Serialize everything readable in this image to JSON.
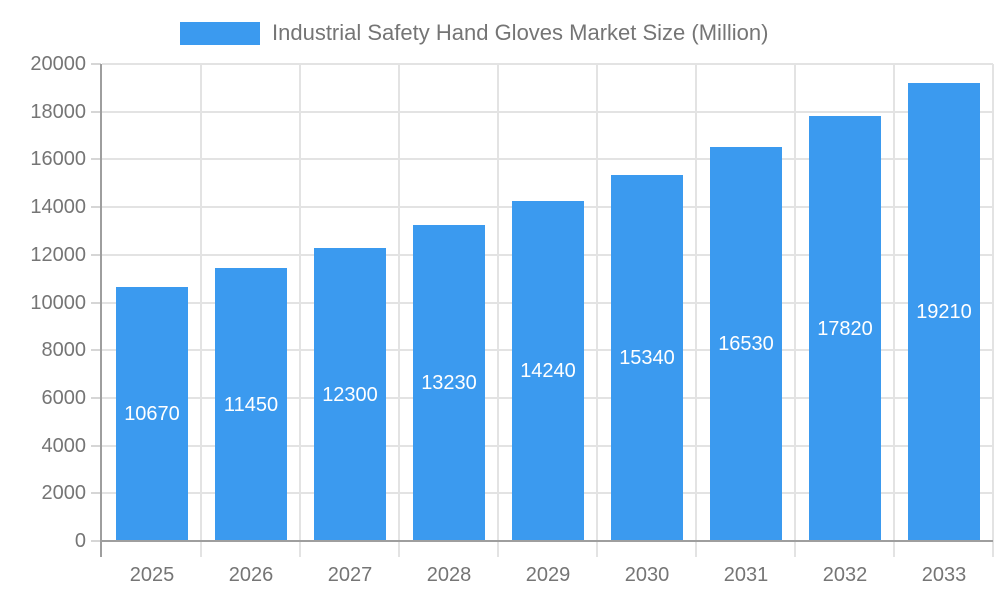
{
  "chart_data": {
    "type": "bar",
    "title": "Industrial Safety Hand Gloves Market Size (Million)",
    "series_name": "Industrial Safety Hand Gloves Market Size (Million)",
    "categories": [
      "2025",
      "2026",
      "2027",
      "2028",
      "2029",
      "2030",
      "2031",
      "2032",
      "2033"
    ],
    "values": [
      10670,
      11450,
      12300,
      13230,
      14240,
      15340,
      16530,
      17820,
      19210
    ],
    "xlabel": "",
    "ylabel": "",
    "ylim": [
      0,
      20000
    ],
    "ytick_step": 2000,
    "ytick_labels": [
      "0",
      "2000",
      "4000",
      "6000",
      "8000",
      "10000",
      "12000",
      "14000",
      "16000",
      "18000",
      "20000"
    ],
    "grid": true,
    "legend_position": "top",
    "bar_labels_visible": true,
    "colors": {
      "bar": "#3B9AEF",
      "bar_label": "#FFFFFF",
      "axis_text": "#757575",
      "axis_line": "#9E9E9E",
      "gridline": "#E3E3E3",
      "tick": "#D6D6D6",
      "background": "#FFFFFF"
    }
  }
}
